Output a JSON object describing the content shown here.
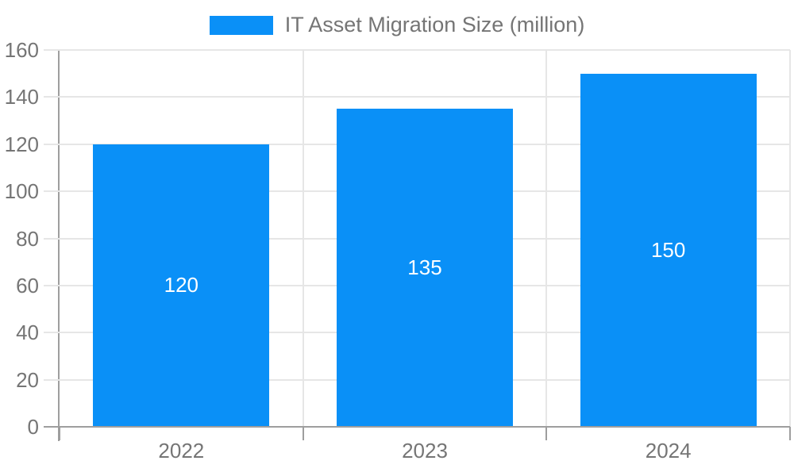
{
  "legend": {
    "label": "IT Asset Migration Size (million)"
  },
  "chart_data": {
    "type": "bar",
    "title": "",
    "xlabel": "",
    "ylabel": "",
    "categories": [
      "2022",
      "2023",
      "2024"
    ],
    "series": [
      {
        "name": "IT Asset Migration Size (million)",
        "values": [
          120,
          135,
          150
        ]
      }
    ],
    "data_labels": [
      "120",
      "135",
      "150"
    ],
    "show_data_labels": true,
    "ylim": [
      0,
      160
    ],
    "yticks": [
      0,
      20,
      40,
      60,
      80,
      100,
      120,
      140,
      160
    ],
    "grid": true,
    "legend_position": "top-center"
  },
  "colors": {
    "bar": "#0a90f7",
    "axis_line": "#9e9e9e",
    "gridline": "#e6e6e6",
    "tick_text": "#757575",
    "data_label": "#ffffff",
    "background": "#ffffff"
  }
}
